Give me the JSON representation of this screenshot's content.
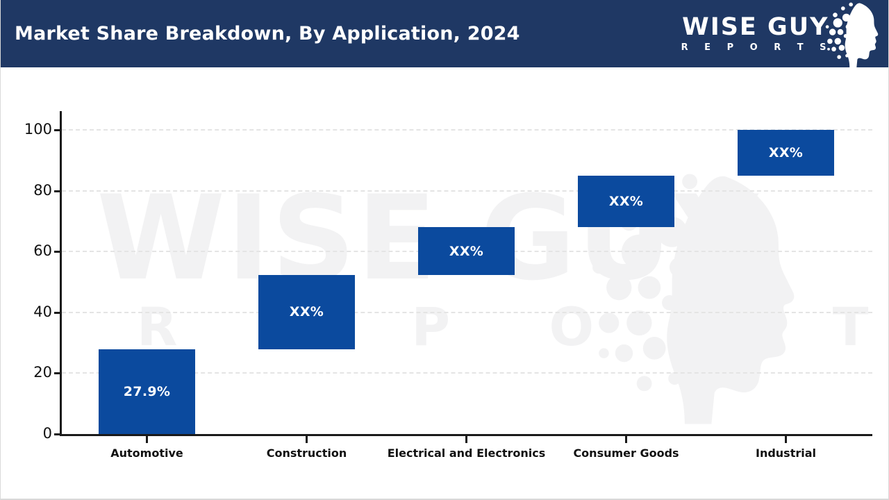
{
  "header": {
    "title": "Market Share Breakdown, By Application, 2024",
    "bg_color": "#1f3864",
    "brand": {
      "line1": "WISE GUY",
      "line2": "R E P O R T S"
    }
  },
  "watermark": {
    "line1": "WISE GUY",
    "line2": "R E P O R T S"
  },
  "chart_data": {
    "type": "bar",
    "subtype": "floating-waterfall",
    "title": "Market Share Breakdown, By Application, 2024",
    "categories": [
      "Automotive",
      "Construction",
      "Electrical and Electronics",
      "Consumer Goods",
      "Industrial"
    ],
    "segments": [
      {
        "category": "Automotive",
        "start": 0,
        "end": 27.9,
        "label": "27.9%"
      },
      {
        "category": "Construction",
        "start": 27.9,
        "end": 52.3,
        "label": "XX%"
      },
      {
        "category": "Electrical and Electronics",
        "start": 52.3,
        "end": 68.0,
        "label": "XX%"
      },
      {
        "category": "Consumer Goods",
        "start": 68.0,
        "end": 85.0,
        "label": "XX%"
      },
      {
        "category": "Industrial",
        "start": 85.0,
        "end": 100,
        "label": "XX%"
      }
    ],
    "xlabel": "",
    "ylabel": "",
    "ylim": [
      0,
      100
    ],
    "yticks": [
      0,
      20,
      40,
      60,
      80,
      100
    ],
    "grid": "dashed-horizontal",
    "legend": "none",
    "bar_color": "#0b4a9e",
    "bar_label_color": "#ffffff",
    "axis_color": "#1a1a1a"
  }
}
